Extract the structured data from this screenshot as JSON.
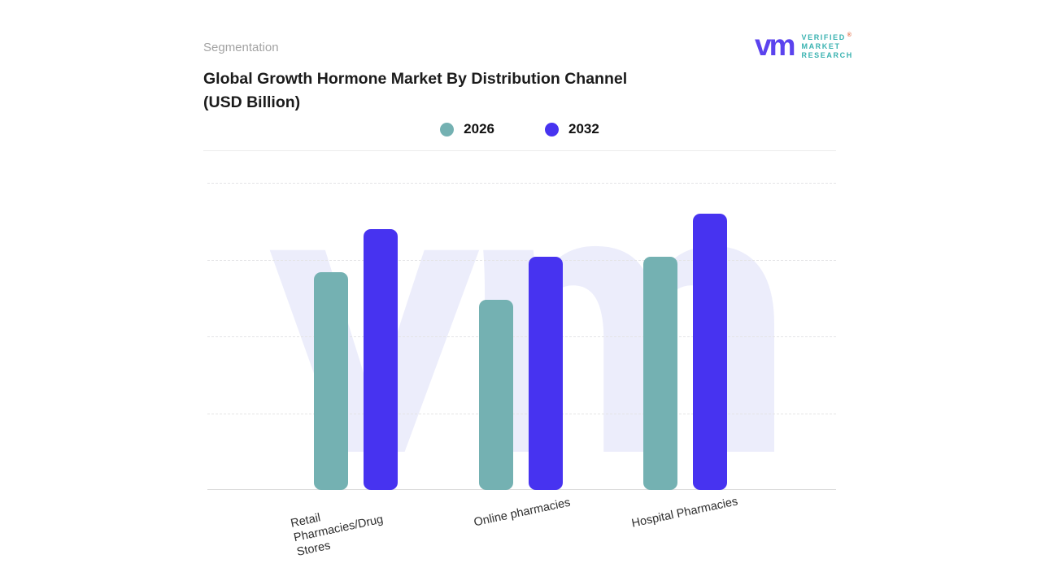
{
  "page": {
    "eyebrow": "Segmentation",
    "title_line1": "Global Growth Hormone Market By Distribution Channel",
    "title_line2": "(USD Billion)"
  },
  "logo": {
    "monogram": "vm",
    "line1": "VERIFIED",
    "line2": "MARKET",
    "line3": "RESEARCH",
    "registered_mark": "®",
    "monogram_color": "#5b43ee",
    "text_color": "#38b2b0"
  },
  "legend": [
    {
      "label": "2026",
      "color": "#74b1b2"
    },
    {
      "label": "2032",
      "color": "#4733f0"
    }
  ],
  "watermark_text": "vm",
  "chart_data": {
    "type": "bar",
    "title": "Global Growth Hormone Market By Distribution Channel (USD Billion)",
    "categories": [
      "Retail Pharmacies/Drug Stores",
      "Online pharmacies",
      "Hospital Pharmacies"
    ],
    "series": [
      {
        "name": "2026",
        "color": "#74b1b2",
        "values": [
          7.1,
          6.2,
          7.6
        ]
      },
      {
        "name": "2032",
        "color": "#4733f0",
        "values": [
          8.5,
          7.6,
          9.0
        ]
      }
    ],
    "xlabel": "",
    "ylabel": "",
    "ylim": [
      0,
      10
    ],
    "grid": "dashed-horizontal",
    "legend_position": "top-center",
    "y_axis_ticks_visible": false
  }
}
